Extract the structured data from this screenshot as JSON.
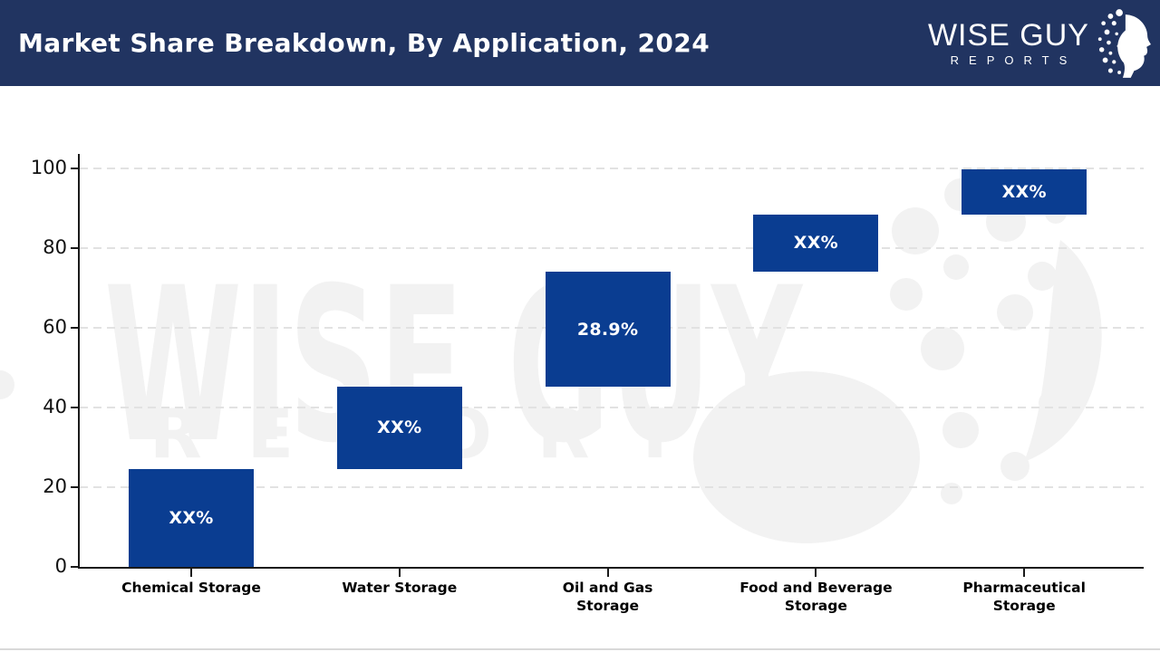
{
  "header": {
    "title": "Market Share Breakdown, By Application, 2024",
    "bg_color": "#213461",
    "logo": {
      "line1": "WISE GUY",
      "line2": "REPORTS"
    }
  },
  "watermark": {
    "line1": "WISE GUY",
    "line2": "REPORTS",
    "face_icon": "dotted-head-profile",
    "color": "#f2f2f2"
  },
  "chart_data": {
    "type": "bar",
    "subtype": "waterfall",
    "title": "Market Share Breakdown, By Application, 2024",
    "categories": [
      "Chemical Storage",
      "Water Storage",
      "Oil and Gas\nStorage",
      "Food and Beverage\nStorage",
      "Pharmaceutical\nStorage"
    ],
    "series": [
      {
        "name": "Market share (%)",
        "segments": [
          {
            "category": "Chemical Storage",
            "start": 0,
            "end": 24.6,
            "label": "XX%"
          },
          {
            "category": "Water Storage",
            "start": 24.6,
            "end": 45.2,
            "label": "XX%"
          },
          {
            "category": "Oil and Gas Storage",
            "start": 45.2,
            "end": 74.1,
            "label": "28.9%"
          },
          {
            "category": "Food and Beverage Storage",
            "start": 74.1,
            "end": 88.5,
            "label": "XX%"
          },
          {
            "category": "Pharmaceutical Storage",
            "start": 88.5,
            "end": 99.8,
            "label": "XX%"
          }
        ]
      }
    ],
    "ylim": [
      0,
      100
    ],
    "yticks": [
      0,
      20,
      40,
      60,
      80,
      100
    ],
    "xlabel": "",
    "ylabel": "",
    "grid": "horizontal-dashed",
    "legend": "none",
    "bar_color": "#0a3d91",
    "bar_label_color": "#ffffff"
  },
  "footer": {
    "divider_color": "#d9d9d9"
  }
}
